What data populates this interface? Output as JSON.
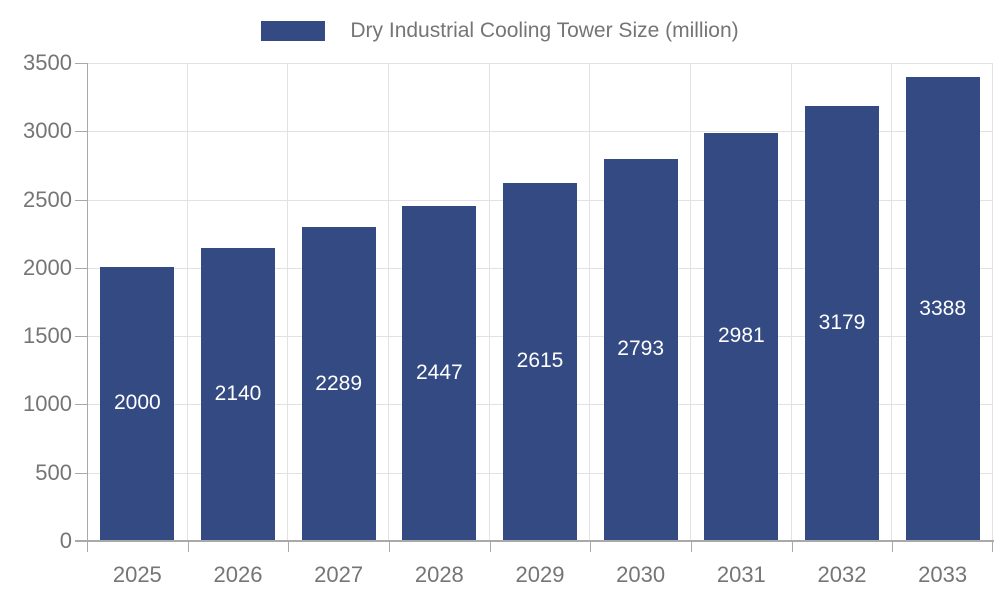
{
  "chart_data": {
    "type": "bar",
    "title": "",
    "legend": "Dry Industrial Cooling Tower Size (million)",
    "legend_position": "top-center",
    "categories": [
      "2025",
      "2026",
      "2027",
      "2028",
      "2029",
      "2030",
      "2031",
      "2032",
      "2033"
    ],
    "values": [
      2000,
      2140,
      2289,
      2447,
      2615,
      2793,
      2981,
      3179,
      3388
    ],
    "xlabel": "",
    "ylabel": "",
    "ylim": [
      0,
      3500
    ],
    "ytick_step": 500,
    "ytick_labels": [
      "0",
      "500",
      "1000",
      "1500",
      "2000",
      "2500",
      "3000",
      "3500"
    ],
    "grid": true,
    "value_labels_shown": true,
    "colors": {
      "bar": "#344a83",
      "axis": "#a9a9a9",
      "grid": "#e2e2e2",
      "tick_label": "#757575",
      "value_label": "#ffffff",
      "background": "#ffffff"
    }
  }
}
